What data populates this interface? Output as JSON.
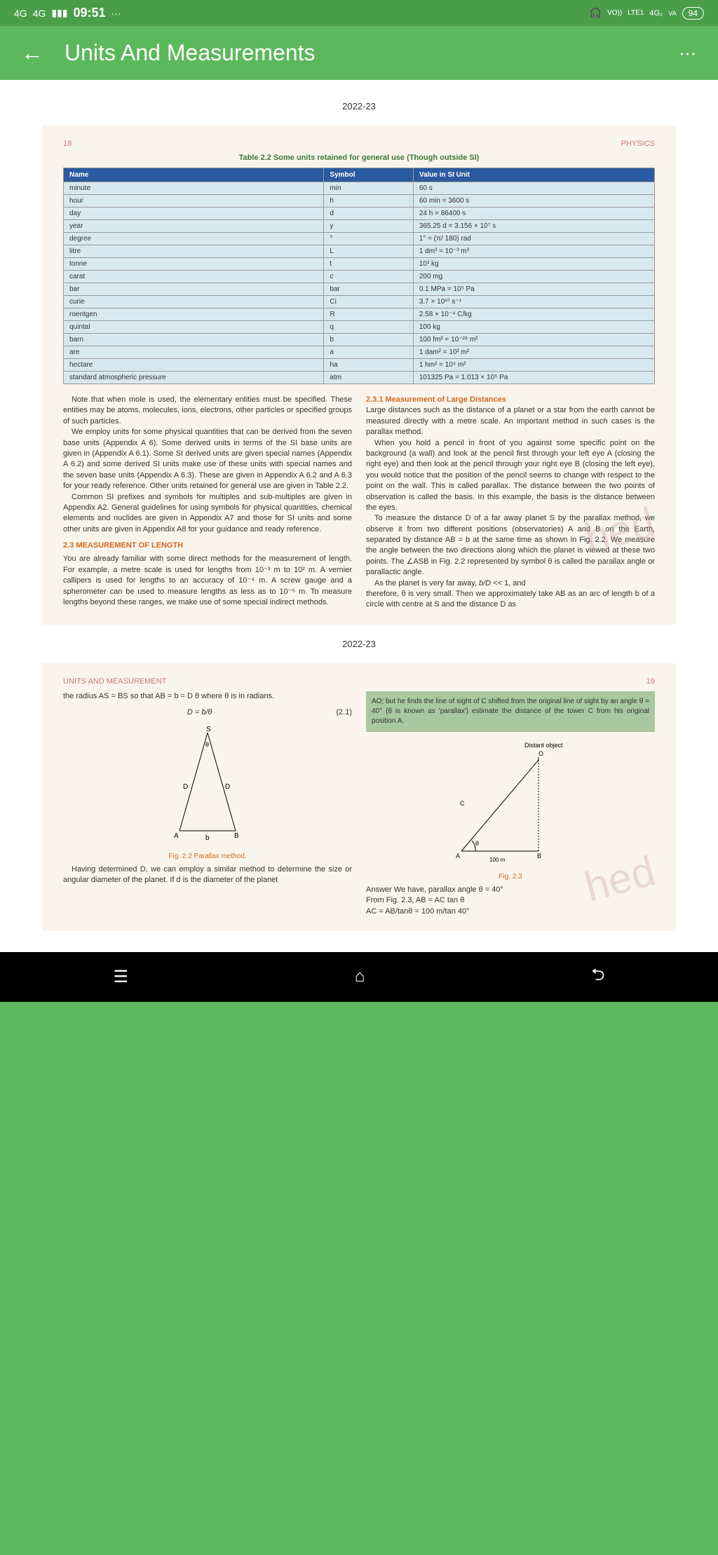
{
  "statusBar": {
    "signal1": "4G",
    "signal2": "4G",
    "time": "09:51",
    "dots": "···",
    "volte": "VO))",
    "lte": "LTE1",
    "g2": "4G₂",
    "va": "VA",
    "battery": "94"
  },
  "header": {
    "title": "Units And Measurements"
  },
  "pageLabel1": "2022-23",
  "pageLabel2": "2022-23",
  "page1": {
    "num": "18",
    "subject": "PHYSICS",
    "tableCaption": "Table 2.2  Some units retained for general use (Though outside SI)",
    "tableHeaders": [
      "Name",
      "Symbol",
      "Value in SI Unit"
    ],
    "tableRows": [
      [
        "minute",
        "min",
        "60 s"
      ],
      [
        "hour",
        "h",
        "60 min = 3600 s"
      ],
      [
        "day",
        "d",
        "24 h = 86400 s"
      ],
      [
        "year",
        "y",
        "365.25 d = 3.156 × 10⁷ s"
      ],
      [
        "degree",
        "°",
        "1° = (π/ 180) rad"
      ],
      [
        "litre",
        "L",
        "1 dm³ = 10⁻³ m³"
      ],
      [
        "tonne",
        "t",
        "10³ kg"
      ],
      [
        "carat",
        "c",
        "200 mg"
      ],
      [
        "bar",
        "bar",
        "0.1 MPa = 10⁵ Pa"
      ],
      [
        "curie",
        "Ci",
        "3.7 × 10¹⁰ s⁻¹"
      ],
      [
        "roentgen",
        "R",
        "2.58 × 10⁻⁴ C/kg"
      ],
      [
        "quintal",
        "q",
        "100 kg"
      ],
      [
        "barn",
        "b",
        "100 fm² = 10⁻²⁸ m²"
      ],
      [
        "are",
        "a",
        "1 dam² = 10² m²"
      ],
      [
        "hectare",
        "ha",
        "1 hm² = 10⁴ m²"
      ],
      [
        "standard atmospheric pressure",
        "atm",
        "101325 Pa = 1.013 × 10⁵ Pa"
      ]
    ],
    "leftCol": {
      "p1": "Note that when mole is used, the elementary entities must be specified. These entities may be atoms, molecules, ions, electrons, other particles or specified groups of such particles.",
      "p2": "We employ units for some physical quantities that can be derived from the seven base units (Appendix A 6). Some derived units in terms of the SI base units are given in (Appendix A 6.1). Some SI derived units are given special names (Appendix A 6.2) and some derived SI units make use of these units with special names and the seven base units (Appendix A 6.3). These are given in Appendix A 6.2 and A 6.3 for your ready reference. Other units retained for general use are given in Table 2.2.",
      "p3": "Common SI prefixes and symbols for multiples and sub-multiples are given in Appendix A2. General guidelines for using symbols for physical quantities, chemical elements and nuclides are given in Appendix A7 and those for SI units and some other units are given in Appendix A8 for your guidance and ready reference.",
      "section": "2.3 MEASUREMENT OF LENGTH",
      "p4": "You are already familiar with some direct methods for the measurement of length. For example, a metre scale is used for lengths from 10⁻³ m to 10² m. A vernier callipers is used for lengths to an accuracy of 10⁻⁴ m. A screw gauge and a spherometer can be used to measure lengths as less as to 10⁻⁵ m. To measure lengths beyond these ranges, we make use of some special indirect methods."
    },
    "rightCol": {
      "subsection": "2.3.1 Measurement of Large Distances",
      "p1": "Large distances such as the distance of a planet or a star from the earth cannot be measured directly with a metre scale. An important method in such cases is the parallax method.",
      "p2": "When you hold a pencil in front of you against some specific point on the background (a wall) and look at the pencil first through your left eye A (closing the right eye) and then look at the pencil through your right eye B (closing the left eye), you would notice that the position of the pencil seems to change with respect to the point on the wall. This is called parallax. The distance between the two points of observation is called the basis. In this example, the basis is the distance between the eyes.",
      "p3": "To measure the distance D of a far away planet S by the parallax method, we observe it from two different positions (observatories) A and B on the Earth, separated by distance AB = b at the same time as shown in Fig. 2.2. We measure the angle between the two directions along which the planet is viewed at these two points. The ∠ASB in Fig. 2.2 represented by symbol θ is called the parallax angle or parallactic angle.",
      "p4a": "As the planet is very far away, ",
      "p4frac": "b/D",
      "p4b": " << 1, and",
      "p5": "therefore, θ is very small. Then we approximately take AB as an arc of length b of a circle with centre at S and the distance D as"
    }
  },
  "page2": {
    "header": "UNITS AND MEASUREMENT",
    "num": "19",
    "leftCol": {
      "p1": "the radius AS = BS so that AB = b = D θ where θ is in radians.",
      "formula": "D = b/θ",
      "eqNum": "(2.1)",
      "figCaption": "Fig. 2.2  Parallax method.",
      "p2": "Having determined D, we can employ a similar method to determine the size or angular diameter of the planet. If d is the diameter of the planet"
    },
    "rightCol": {
      "highlight": "AO; but he finds the line of sight of C shifted from the original line of sight by an angle θ = 40° (θ is known as 'parallax') estimate the distance of the tower C from his original position A.",
      "figLabel1": "Distant object",
      "figLabel2": "O",
      "figLabel3": "100 m",
      "figCaption": "Fig. 2.3",
      "answer": "Answer We have, parallax angle θ = 40°",
      "p2": "From Fig. 2.3, AB = AC tan θ",
      "p3": "AC = AB/tanθ = 100 m/tan 40°"
    }
  },
  "watermark": "hed"
}
